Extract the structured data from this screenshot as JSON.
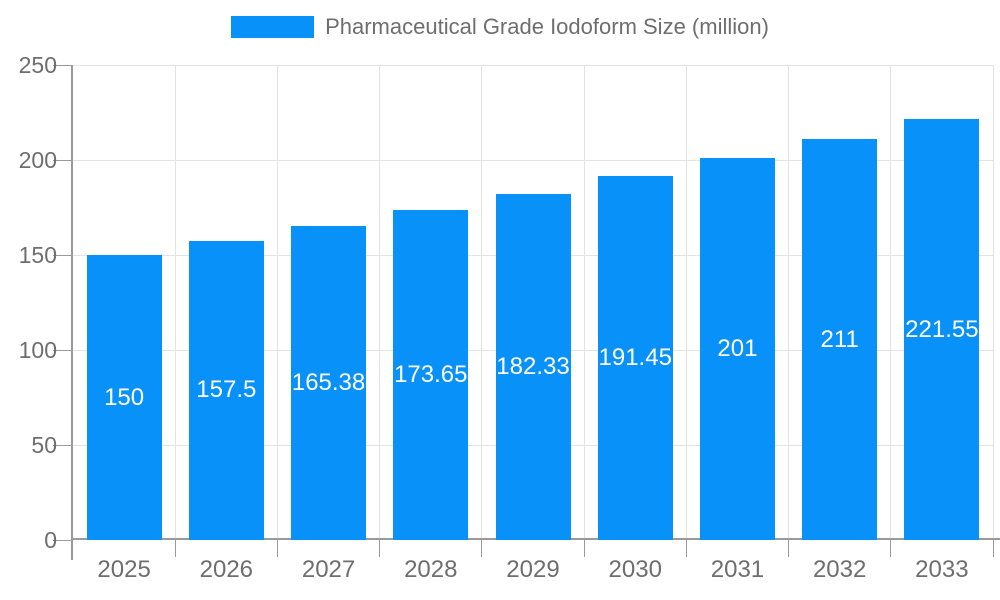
{
  "legend": {
    "label": "Pharmaceutical Grade Iodoform Size (million)"
  },
  "chart_data": {
    "type": "bar",
    "title": "Pharmaceutical Grade Iodoform Size (million)",
    "categories": [
      "2025",
      "2026",
      "2027",
      "2028",
      "2029",
      "2030",
      "2031",
      "2032",
      "2033"
    ],
    "values": [
      150,
      157.5,
      165.38,
      173.65,
      182.33,
      191.45,
      201,
      211,
      221.55
    ],
    "xlabel": "",
    "ylabel": "",
    "ylim": [
      0,
      250
    ],
    "yticks": [
      0,
      50,
      100,
      150,
      200,
      250
    ],
    "grid": true,
    "legend_position": "top",
    "bar_color": "#0891f8",
    "bar_label_color": "#ffffff",
    "axis_text_color": "#6e6e6e",
    "grid_color": "#e3e3e3",
    "axis_line_color": "#9a9a9a"
  }
}
